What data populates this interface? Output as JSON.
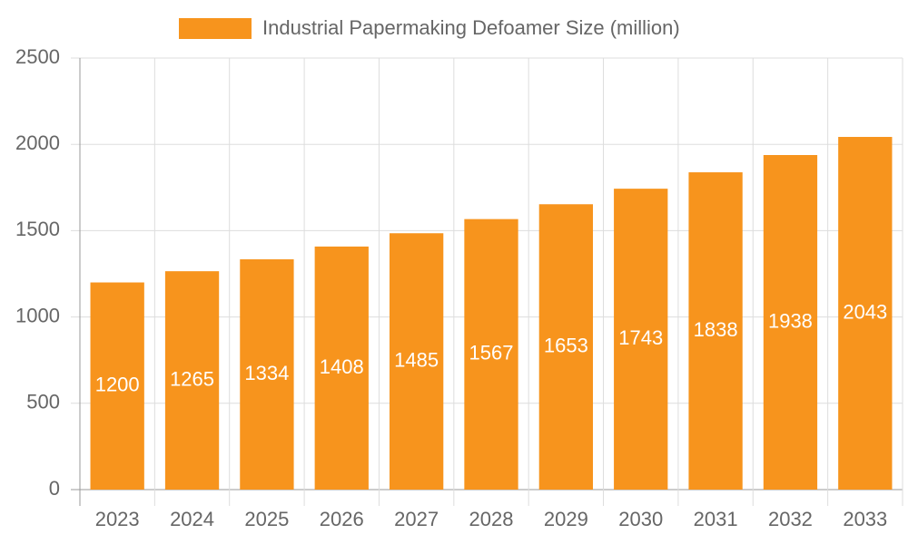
{
  "chart_data": {
    "type": "bar",
    "categories": [
      "2023",
      "2024",
      "2025",
      "2026",
      "2027",
      "2028",
      "2029",
      "2030",
      "2031",
      "2032",
      "2033"
    ],
    "series": [
      {
        "name": "Industrial Papermaking Defoamer Size (million)",
        "color": "#f7941d",
        "values": [
          1200,
          1265,
          1334,
          1408,
          1485,
          1567,
          1653,
          1743,
          1838,
          1938,
          2043
        ]
      }
    ],
    "ylim": [
      0,
      2500
    ],
    "yticks": [
      0,
      500,
      1000,
      1500,
      2000,
      2500
    ],
    "grid": true,
    "legend": "top"
  }
}
